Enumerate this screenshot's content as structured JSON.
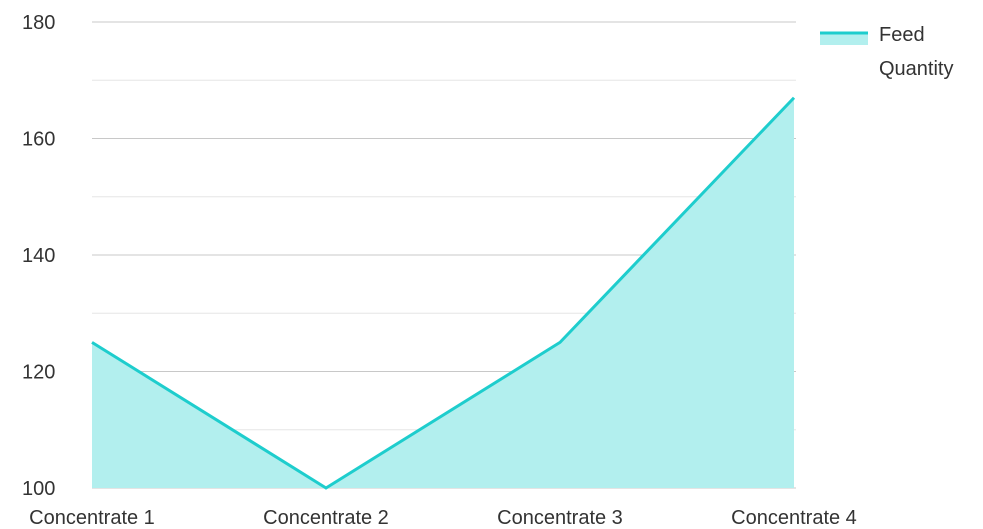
{
  "colors": {
    "line": "#1ecdcd",
    "area": "#b2efee",
    "grid_major": "#c8c8c8",
    "grid_minor": "#e6e6e6",
    "text": "#333333"
  },
  "legend": {
    "line1": "Feed",
    "line2": "Quantity",
    "placement": "top-right"
  },
  "chart_data": {
    "type": "area",
    "categories": [
      "Concentrate 1",
      "Concentrate 2",
      "Concentrate 3",
      "Concentrate 4"
    ],
    "series": [
      {
        "name": "Feed Quantity",
        "values": [
          125,
          100,
          125,
          167
        ]
      }
    ],
    "ylim": [
      100,
      180
    ],
    "yticks": [
      100,
      120,
      140,
      160,
      180
    ],
    "ytick_labels": [
      "100",
      "120",
      "140",
      "160",
      "180"
    ],
    "grid": true,
    "xlabel": "",
    "ylabel": ""
  }
}
